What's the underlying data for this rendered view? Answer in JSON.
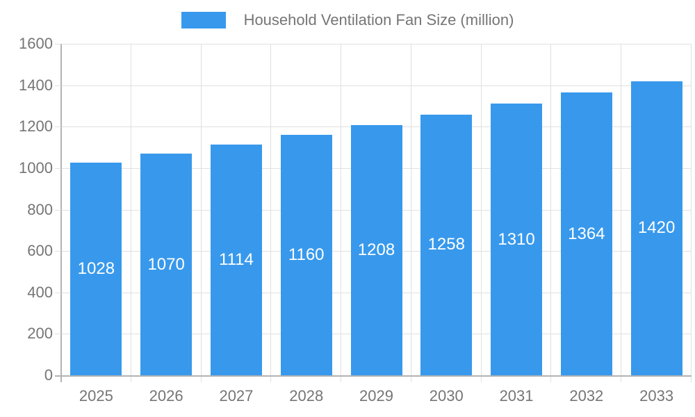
{
  "chart_data": {
    "type": "bar",
    "title": "Household Ventilation Fan Size (million)",
    "categories": [
      "2025",
      "2026",
      "2027",
      "2028",
      "2029",
      "2030",
      "2031",
      "2032",
      "2033"
    ],
    "values": [
      1028,
      1070,
      1114,
      1160,
      1208,
      1258,
      1310,
      1364,
      1420
    ],
    "xlabel": "",
    "ylabel": "",
    "ylim": [
      0,
      1600
    ],
    "ytick_step": 200,
    "ytick_labels": [
      "0",
      "200",
      "400",
      "600",
      "800",
      "1000",
      "1200",
      "1400",
      "1600"
    ],
    "grid": true,
    "legend_position": "top",
    "value_labels_shown": true,
    "colors": {
      "bar": "#3899EC",
      "value_label": "#FFFFFF",
      "axis_text": "#757575",
      "legend_text": "#757575",
      "gridline": "#E0E0E0",
      "axis_line": "#B3B3B3",
      "background": "#FFFFFF"
    }
  }
}
